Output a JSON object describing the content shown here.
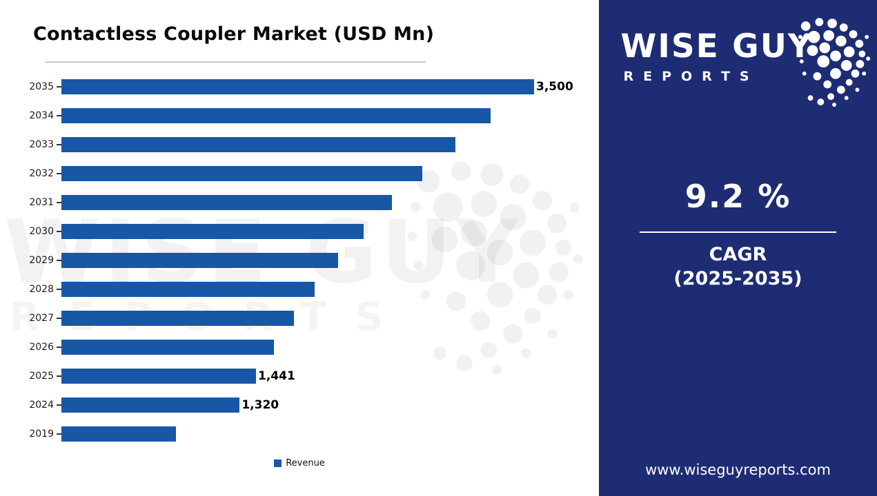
{
  "title": "Contactless Coupler Market (USD Mn)",
  "watermark": {
    "line1": "WISE GUY",
    "line2": "REPORTS"
  },
  "legend": {
    "label": "Revenue"
  },
  "sidebar": {
    "bg_color": "#1e2c74",
    "logo_line1": "WISE GUY",
    "logo_line2": "REPORTS",
    "cagr_value": "9.2 %",
    "cagr_label": "CAGR",
    "cagr_range": "(2025-2035)",
    "website": "www.wiseguyreports.com"
  },
  "chart_data": {
    "type": "bar",
    "orientation": "horizontal",
    "title": "Contactless Coupler Market (USD Mn)",
    "xlabel": "",
    "ylabel": "",
    "categories": [
      "2035",
      "2034",
      "2033",
      "2032",
      "2031",
      "2030",
      "2029",
      "2028",
      "2027",
      "2026",
      "2025",
      "2024",
      "2019"
    ],
    "values": [
      3500,
      3180,
      2915,
      2670,
      2445,
      2240,
      2050,
      1875,
      1720,
      1575,
      1441,
      1320,
      850
    ],
    "bar_labels": {
      "2035": "3,500",
      "2025": "1,441",
      "2024": "1,320"
    },
    "xlim": [
      0,
      3500
    ],
    "bar_color": "#1857a6",
    "grid": false,
    "legend_entries": [
      "Revenue"
    ],
    "legend_position": "bottom"
  }
}
